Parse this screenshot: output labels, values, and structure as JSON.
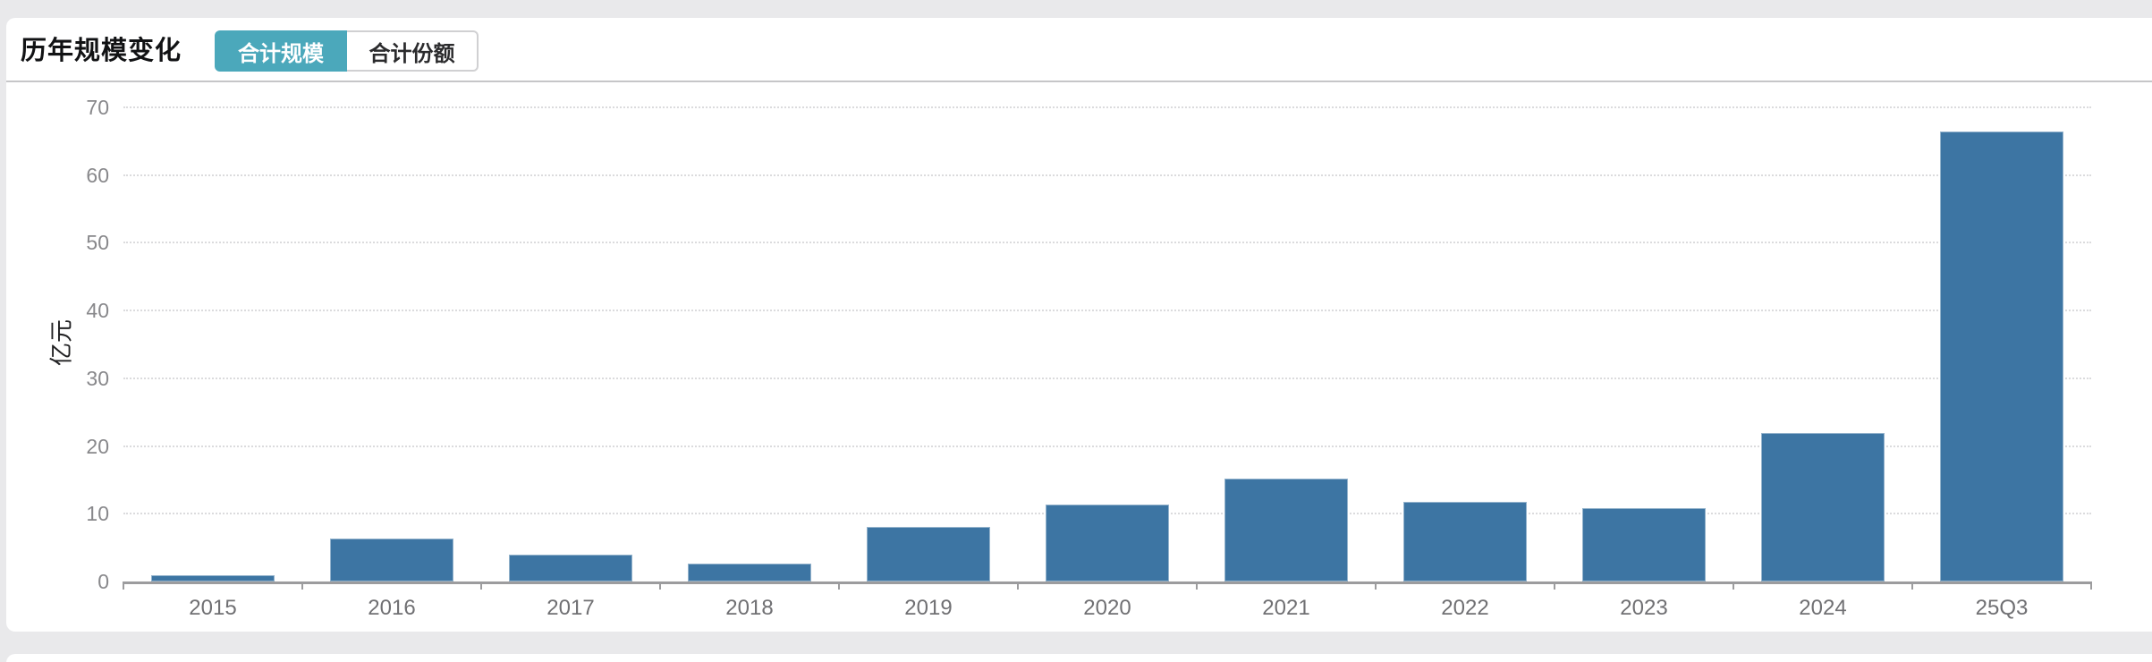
{
  "header": {
    "title": "历年规模变化",
    "tabs": [
      {
        "label": "合计规模",
        "active": true
      },
      {
        "label": "合计份额",
        "active": false
      }
    ]
  },
  "colors": {
    "accent_teal": "#4BA8BB",
    "bar_blue": "#3D75A3",
    "axis_line": "#9C9C9E",
    "gridline": "#DBDBDD",
    "page_background": "#E9E9EB"
  },
  "chart_data": {
    "type": "bar",
    "title": "历年规模变化",
    "series_name": "合计规模",
    "categories": [
      "2015",
      "2016",
      "2017",
      "2018",
      "2019",
      "2020",
      "2021",
      "2022",
      "2023",
      "2024",
      "25Q3"
    ],
    "values": [
      0.9,
      6.3,
      3.9,
      2.6,
      8.0,
      11.3,
      15.2,
      11.7,
      10.8,
      21.9,
      66.4
    ],
    "ylabel": "亿元",
    "xlabel": "",
    "ylim": [
      0,
      70
    ],
    "yticks": [
      0,
      10,
      20,
      30,
      40,
      50,
      60,
      70
    ],
    "grid": "horizontal-dotted",
    "legend_position": "none"
  }
}
